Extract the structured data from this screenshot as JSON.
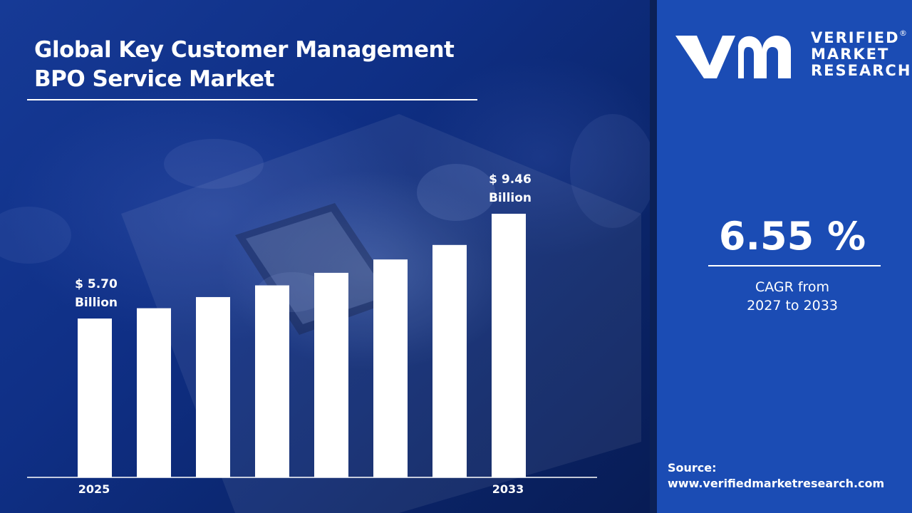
{
  "title": {
    "line1": "Global Key Customer Management",
    "line2": "BPO Service Market"
  },
  "chart_data": {
    "type": "bar",
    "categories": [
      "2025",
      "",
      "",
      "",
      "",
      "",
      "",
      "2033"
    ],
    "values": [
      5.7,
      6.07,
      6.47,
      6.89,
      7.34,
      7.82,
      8.34,
      9.46
    ],
    "labels": [
      {
        "index": 0,
        "line1": "$ 5.70",
        "line2": "Billion"
      },
      {
        "index": 7,
        "line1": "$ 9.46",
        "line2": "Billion"
      }
    ],
    "title": "",
    "xlabel": "",
    "ylabel": "",
    "bar_color": "#ffffff",
    "grid": false
  },
  "brand": {
    "line1": "VERIFIED",
    "line2": "MARKET",
    "line3": "RESEARCH",
    "registered": "®"
  },
  "cagr": {
    "value": "6.55 %",
    "text_line1": "CAGR from",
    "text_line2": "2027 to 2033"
  },
  "source": {
    "label": "Source:",
    "url": "www.verifiedmarketresearch.com"
  },
  "colors": {
    "right_panel": "#1b4cb4",
    "left_panel": "#0f2f85",
    "text": "#ffffff"
  }
}
